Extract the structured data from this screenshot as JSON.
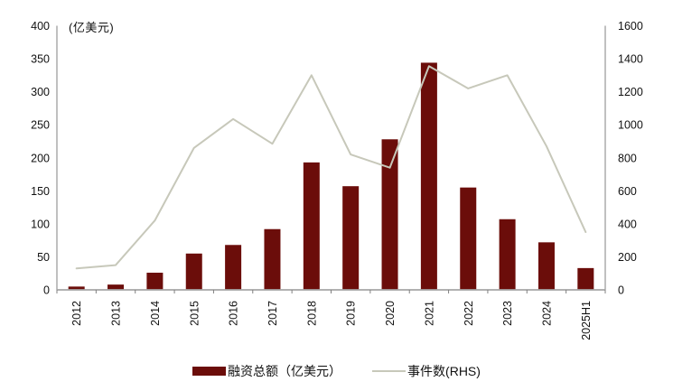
{
  "chart_data": {
    "type": "bar",
    "subtype": "bar-line-combo",
    "title": "",
    "categories": [
      "2012",
      "2013",
      "2014",
      "2015",
      "2016",
      "2017",
      "2018",
      "2019",
      "2020",
      "2021",
      "2022",
      "2023",
      "2024",
      "2025H1"
    ],
    "series": [
      {
        "name": "融资总额（亿美元）",
        "type": "bar",
        "axis": "left",
        "color": "#6B0D0A",
        "values": [
          5,
          8,
          26,
          55,
          68,
          92,
          193,
          157,
          228,
          344,
          155,
          107,
          72,
          33
        ]
      },
      {
        "name": "事件数(RHS)",
        "type": "line",
        "axis": "right",
        "color": "#C7C8BA",
        "values": [
          130,
          150,
          420,
          860,
          1035,
          885,
          1300,
          820,
          740,
          1355,
          1220,
          1300,
          870,
          350
        ]
      }
    ],
    "left_axis": {
      "title": "(亿美元)",
      "min": 0,
      "max": 400,
      "step": 50,
      "ticks": [
        400,
        350,
        300,
        250,
        200,
        150,
        100,
        50,
        0
      ]
    },
    "right_axis": {
      "min": 0,
      "max": 1600,
      "step": 200,
      "ticks": [
        1600,
        1400,
        1200,
        1000,
        800,
        600,
        400,
        200,
        0
      ]
    },
    "grid": false,
    "legend_position": "bottom",
    "colors": {
      "bar_fill": "#6B0D0A",
      "line_stroke": "#C7C8BA",
      "axis_line": "#808080",
      "baseline": "#A6A6A6",
      "text": "#111111"
    }
  }
}
